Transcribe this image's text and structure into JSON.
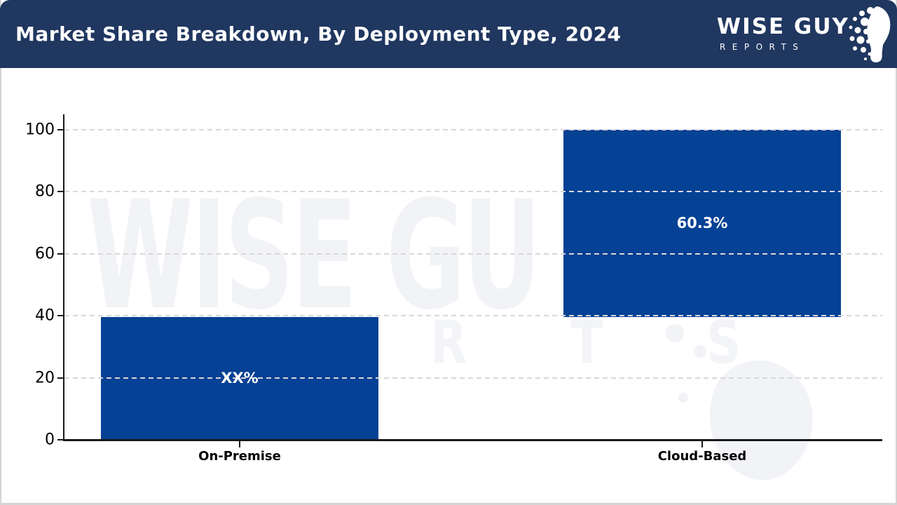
{
  "header": {
    "title": "Market Share Breakdown, By Deployment Type, 2024",
    "logo": {
      "brand_top": "WISE GUY",
      "brand_bottom": "REPORTS"
    }
  },
  "watermark": {
    "big_text": "WISE GU",
    "small_text": "R T S"
  },
  "chart_data": {
    "type": "bar",
    "title": "Market Share Breakdown, By Deployment Type, 2024",
    "categories": [
      "On-Premise",
      "Cloud-Based"
    ],
    "series": [
      {
        "name": "On-Premise",
        "range": [
          0,
          39.7
        ],
        "label": "XX%"
      },
      {
        "name": "Cloud-Based",
        "range": [
          39.7,
          100
        ],
        "label": "60.3%"
      }
    ],
    "y_ticks": [
      0,
      20,
      40,
      60,
      80,
      100
    ],
    "ylim": [
      0,
      105
    ],
    "xlabel": "",
    "ylabel": "",
    "grid": "horizontal-dashed",
    "legend": "none",
    "bar_color": "#054194",
    "bar_label_color": "#ffffff",
    "layout_note": "Cloud-Based segment floats above the On-Premise segment (stacked-percent style)"
  },
  "colors": {
    "header_bg": "#203760",
    "bar": "#054194",
    "axis": "#1a1a1a",
    "grid": "#d8d8d8",
    "watermark": "#f2f3f6",
    "frame_border": "#d4d4d4"
  }
}
